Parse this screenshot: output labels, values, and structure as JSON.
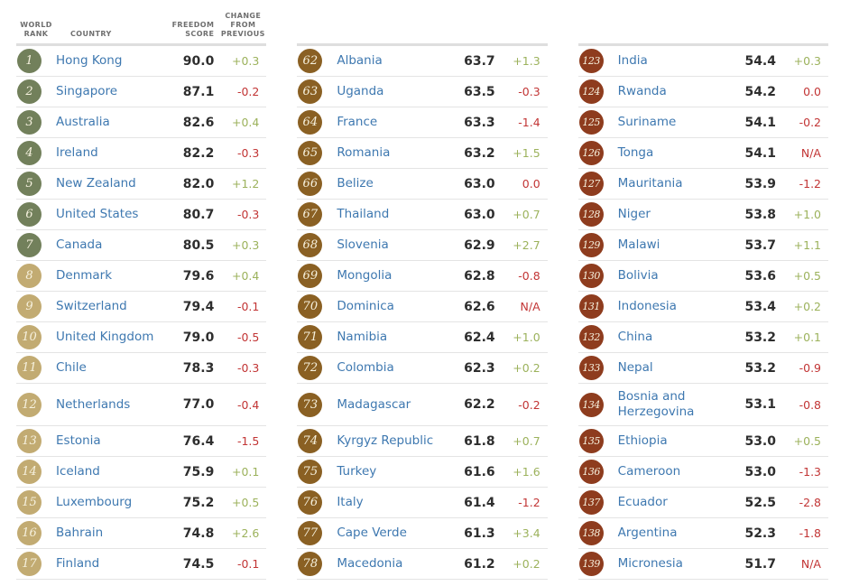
{
  "header": {
    "world_rank": "World Rank",
    "country": "Country",
    "freedom_score": "Freedom Score",
    "change": "Change from Previous"
  },
  "badge_colors": {
    "free": "#72805b",
    "mostly_free": "#c2ab72",
    "moderately_free": "#8a6023",
    "mostly_unfree": "#8e3c1e"
  },
  "text_colors": {
    "country": "#3e78b0",
    "score": "#2e2e2e",
    "positive": "#9cb25c",
    "negative": "#c23535"
  },
  "columns": [
    {
      "rows": [
        {
          "rank": "1",
          "country": "Hong Kong",
          "score": "90.0",
          "change": "+0.3",
          "positive": true,
          "tier": "free"
        },
        {
          "rank": "2",
          "country": "Singapore",
          "score": "87.1",
          "change": "-0.2",
          "positive": false,
          "tier": "free"
        },
        {
          "rank": "3",
          "country": "Australia",
          "score": "82.6",
          "change": "+0.4",
          "positive": true,
          "tier": "free"
        },
        {
          "rank": "4",
          "country": "Ireland",
          "score": "82.2",
          "change": "-0.3",
          "positive": false,
          "tier": "free"
        },
        {
          "rank": "5",
          "country": "New Zealand",
          "score": "82.0",
          "change": "+1.2",
          "positive": true,
          "tier": "free"
        },
        {
          "rank": "6",
          "country": "United States",
          "score": "80.7",
          "change": "-0.3",
          "positive": false,
          "tier": "free"
        },
        {
          "rank": "7",
          "country": "Canada",
          "score": "80.5",
          "change": "+0.3",
          "positive": true,
          "tier": "free"
        },
        {
          "rank": "8",
          "country": "Denmark",
          "score": "79.6",
          "change": "+0.4",
          "positive": true,
          "tier": "mostly_free"
        },
        {
          "rank": "9",
          "country": "Switzerland",
          "score": "79.4",
          "change": "-0.1",
          "positive": false,
          "tier": "mostly_free"
        },
        {
          "rank": "10",
          "country": "United Kingdom",
          "score": "79.0",
          "change": "-0.5",
          "positive": false,
          "tier": "mostly_free"
        },
        {
          "rank": "11",
          "country": "Chile",
          "score": "78.3",
          "change": "-0.3",
          "positive": false,
          "tier": "mostly_free"
        },
        {
          "rank": "12",
          "country": "Netherlands",
          "score": "77.0",
          "change": "-0.4",
          "positive": false,
          "tier": "mostly_free"
        },
        {
          "rank": "13",
          "country": "Estonia",
          "score": "76.4",
          "change": "-1.5",
          "positive": false,
          "tier": "mostly_free"
        },
        {
          "rank": "14",
          "country": "Iceland",
          "score": "75.9",
          "change": "+0.1",
          "positive": true,
          "tier": "mostly_free"
        },
        {
          "rank": "15",
          "country": "Luxembourg",
          "score": "75.2",
          "change": "+0.5",
          "positive": true,
          "tier": "mostly_free"
        },
        {
          "rank": "16",
          "country": "Bahrain",
          "score": "74.8",
          "change": "+2.6",
          "positive": true,
          "tier": "mostly_free"
        },
        {
          "rank": "17",
          "country": "Finland",
          "score": "74.5",
          "change": "-0.1",
          "positive": false,
          "tier": "mostly_free"
        }
      ]
    },
    {
      "rows": [
        {
          "rank": "62",
          "country": "Albania",
          "score": "63.7",
          "change": "+1.3",
          "positive": true,
          "tier": "moderately_free"
        },
        {
          "rank": "63",
          "country": "Uganda",
          "score": "63.5",
          "change": "-0.3",
          "positive": false,
          "tier": "moderately_free"
        },
        {
          "rank": "64",
          "country": "France",
          "score": "63.3",
          "change": "-1.4",
          "positive": false,
          "tier": "moderately_free"
        },
        {
          "rank": "65",
          "country": "Romania",
          "score": "63.2",
          "change": "+1.5",
          "positive": true,
          "tier": "moderately_free"
        },
        {
          "rank": "66",
          "country": "Belize",
          "score": "63.0",
          "change": "0.0",
          "positive": false,
          "tier": "moderately_free"
        },
        {
          "rank": "67",
          "country": "Thailand",
          "score": "63.0",
          "change": "+0.7",
          "positive": true,
          "tier": "moderately_free"
        },
        {
          "rank": "68",
          "country": "Slovenia",
          "score": "62.9",
          "change": "+2.7",
          "positive": true,
          "tier": "moderately_free"
        },
        {
          "rank": "69",
          "country": "Mongolia",
          "score": "62.8",
          "change": "-0.8",
          "positive": false,
          "tier": "moderately_free"
        },
        {
          "rank": "70",
          "country": "Dominica",
          "score": "62.6",
          "change": "N/A",
          "positive": false,
          "tier": "moderately_free"
        },
        {
          "rank": "71",
          "country": "Namibia",
          "score": "62.4",
          "change": "+1.0",
          "positive": true,
          "tier": "moderately_free"
        },
        {
          "rank": "72",
          "country": "Colombia",
          "score": "62.3",
          "change": "+0.2",
          "positive": true,
          "tier": "moderately_free"
        },
        {
          "rank": "73",
          "country": "Madagascar",
          "score": "62.2",
          "change": "-0.2",
          "positive": false,
          "tier": "moderately_free"
        },
        {
          "rank": "74",
          "country": "Kyrgyz Republic",
          "score": "61.8",
          "change": "+0.7",
          "positive": true,
          "tier": "moderately_free"
        },
        {
          "rank": "75",
          "country": "Turkey",
          "score": "61.6",
          "change": "+1.6",
          "positive": true,
          "tier": "moderately_free"
        },
        {
          "rank": "76",
          "country": "Italy",
          "score": "61.4",
          "change": "-1.2",
          "positive": false,
          "tier": "moderately_free"
        },
        {
          "rank": "77",
          "country": "Cape Verde",
          "score": "61.3",
          "change": "+3.4",
          "positive": true,
          "tier": "moderately_free"
        },
        {
          "rank": "78",
          "country": "Macedonia",
          "score": "61.2",
          "change": "+0.2",
          "positive": true,
          "tier": "moderately_free"
        }
      ]
    },
    {
      "rows": [
        {
          "rank": "123",
          "country": "India",
          "score": "54.4",
          "change": "+0.3",
          "positive": true,
          "tier": "mostly_unfree"
        },
        {
          "rank": "124",
          "country": "Rwanda",
          "score": "54.2",
          "change": "0.0",
          "positive": false,
          "tier": "mostly_unfree"
        },
        {
          "rank": "125",
          "country": "Suriname",
          "score": "54.1",
          "change": "-0.2",
          "positive": false,
          "tier": "mostly_unfree"
        },
        {
          "rank": "126",
          "country": "Tonga",
          "score": "54.1",
          "change": "N/A",
          "positive": false,
          "tier": "mostly_unfree"
        },
        {
          "rank": "127",
          "country": "Mauritania",
          "score": "53.9",
          "change": "-1.2",
          "positive": false,
          "tier": "mostly_unfree"
        },
        {
          "rank": "128",
          "country": "Niger",
          "score": "53.8",
          "change": "+1.0",
          "positive": true,
          "tier": "mostly_unfree"
        },
        {
          "rank": "129",
          "country": "Malawi",
          "score": "53.7",
          "change": "+1.1",
          "positive": true,
          "tier": "mostly_unfree"
        },
        {
          "rank": "130",
          "country": "Bolivia",
          "score": "53.6",
          "change": "+0.5",
          "positive": true,
          "tier": "mostly_unfree"
        },
        {
          "rank": "131",
          "country": "Indonesia",
          "score": "53.4",
          "change": "+0.2",
          "positive": true,
          "tier": "mostly_unfree"
        },
        {
          "rank": "132",
          "country": "China",
          "score": "53.2",
          "change": "+0.1",
          "positive": true,
          "tier": "mostly_unfree"
        },
        {
          "rank": "133",
          "country": "Nepal",
          "score": "53.2",
          "change": "-0.9",
          "positive": false,
          "tier": "mostly_unfree"
        },
        {
          "rank": "134",
          "country": "Bosnia and Herzegovina",
          "score": "53.1",
          "change": "-0.8",
          "positive": false,
          "tier": "mostly_unfree"
        },
        {
          "rank": "135",
          "country": "Ethiopia",
          "score": "53.0",
          "change": "+0.5",
          "positive": true,
          "tier": "mostly_unfree"
        },
        {
          "rank": "136",
          "country": "Cameroon",
          "score": "53.0",
          "change": "-1.3",
          "positive": false,
          "tier": "mostly_unfree"
        },
        {
          "rank": "137",
          "country": "Ecuador",
          "score": "52.5",
          "change": "-2.8",
          "positive": false,
          "tier": "mostly_unfree"
        },
        {
          "rank": "138",
          "country": "Argentina",
          "score": "52.3",
          "change": "-1.8",
          "positive": false,
          "tier": "mostly_unfree"
        },
        {
          "rank": "139",
          "country": "Micronesia",
          "score": "51.7",
          "change": "N/A",
          "positive": false,
          "tier": "mostly_unfree"
        }
      ]
    }
  ]
}
